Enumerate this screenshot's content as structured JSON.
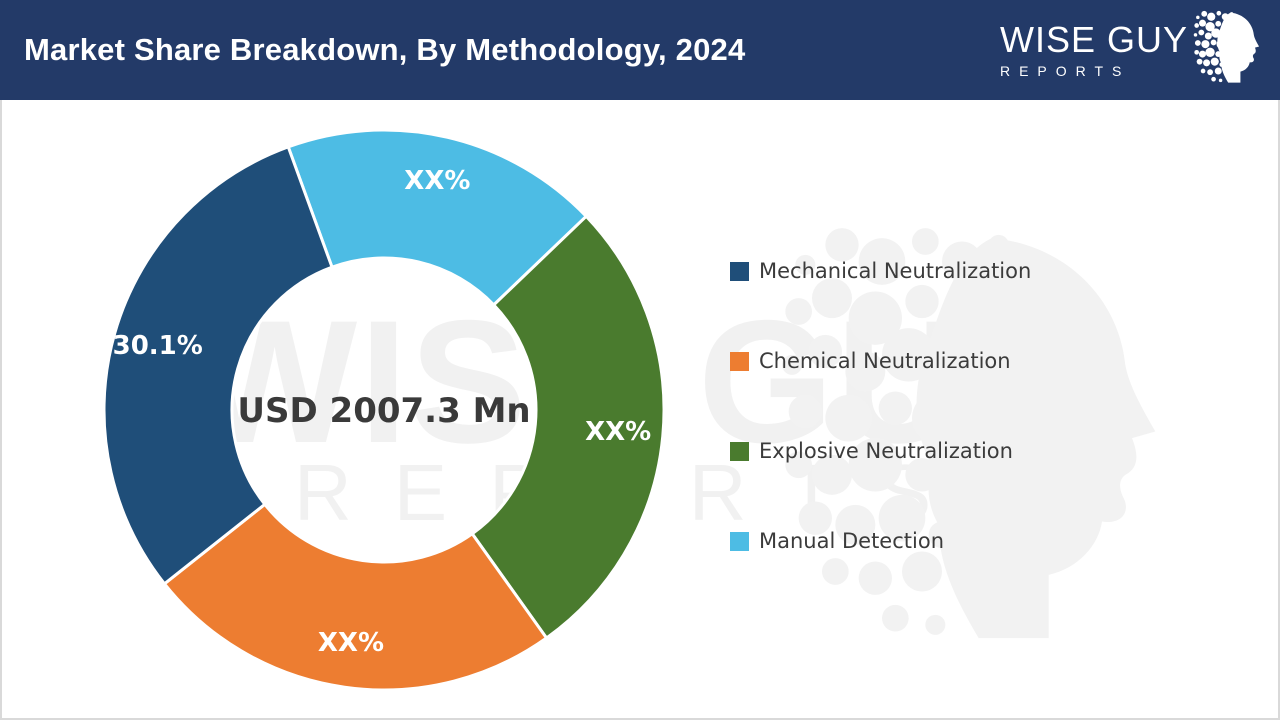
{
  "header": {
    "title": "Market Share Breakdown, By Methodology, 2024",
    "logo": {
      "line1": "WISE GUY",
      "line2": "REPORTS"
    }
  },
  "watermark": {
    "line1": "WISE GUY",
    "line2": "REPORTS"
  },
  "colors": {
    "header_bg": "#233A68",
    "border": "#D9D9D9",
    "legend_text": "#3B3B3B",
    "center_text": "#3A3A3A",
    "slice_label_text": "#FFFFFF",
    "watermark": "#F2F2F2"
  },
  "chart_data": {
    "type": "donut",
    "title": "Market Share Breakdown, By Methodology, 2024",
    "center_label": "USD 2007.3 Mn",
    "segments": [
      {
        "name": "Mechanical Neutralization",
        "color": "#1F4E79",
        "value_pct": 30.1,
        "label": "30.1%"
      },
      {
        "name": "Chemical Neutralization",
        "color": "#ED7D31",
        "value_pct": 24.2,
        "label": "XX%"
      },
      {
        "name": "Explosive Neutralization",
        "color": "#4A7B2E",
        "value_pct": 27.3,
        "label": "XX%"
      },
      {
        "name": "Manual Detection",
        "color": "#4DBCE4",
        "value_pct": 18.4,
        "label": "XX%"
      }
    ],
    "draw_order": [
      3,
      2,
      1,
      0
    ],
    "start_angle_deg": -20,
    "outer_radius": 280,
    "inner_radius": 152,
    "label_radius_ratio": 0.84,
    "legend_position": "right"
  }
}
